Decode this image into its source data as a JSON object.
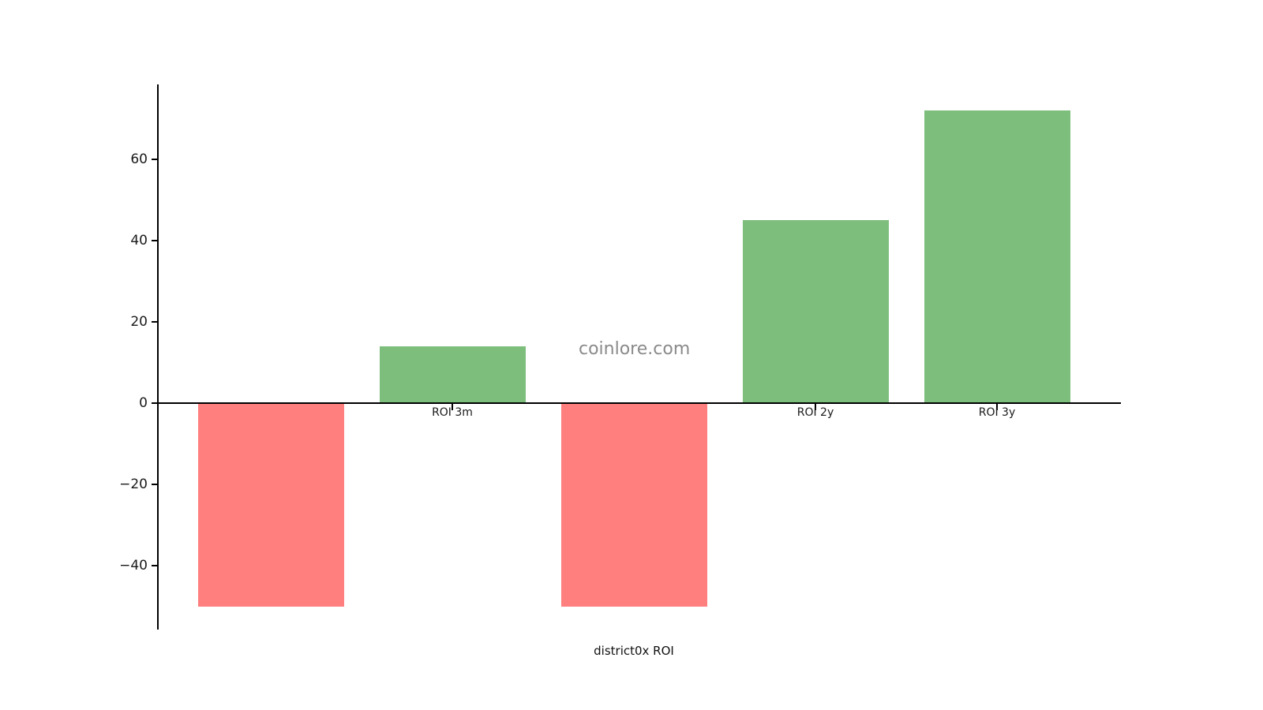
{
  "chart_data": {
    "type": "bar",
    "title": "district0x ROI",
    "watermark": "coinlore.com",
    "categories": [
      "",
      "ROI 3m",
      "",
      "ROI 2y",
      "ROI 3y"
    ],
    "values": [
      -50,
      14,
      -50,
      45,
      72
    ],
    "series": [
      {
        "name": "district0x ROI",
        "values": [
          -50,
          14,
          -50,
          45,
          72
        ]
      }
    ],
    "bar_colors": [
      "#ff7f7f",
      "#7dbe7d",
      "#ff7f7f",
      "#7dbe7d",
      "#7dbe7d"
    ],
    "color_positive": "#7dbe7d",
    "color_negative": "#ff7f7f",
    "yticks": [
      60,
      40,
      20,
      0,
      -20,
      -40
    ],
    "ytick_labels": [
      "60",
      "40",
      "20",
      "0",
      "−20",
      "−40"
    ],
    "ylim": [
      -56,
      78
    ],
    "grid": false,
    "legend_position": "none",
    "axis_color": "#000000",
    "text_color": "#1a1a1a",
    "watermark_color": "#8a8a8a"
  }
}
